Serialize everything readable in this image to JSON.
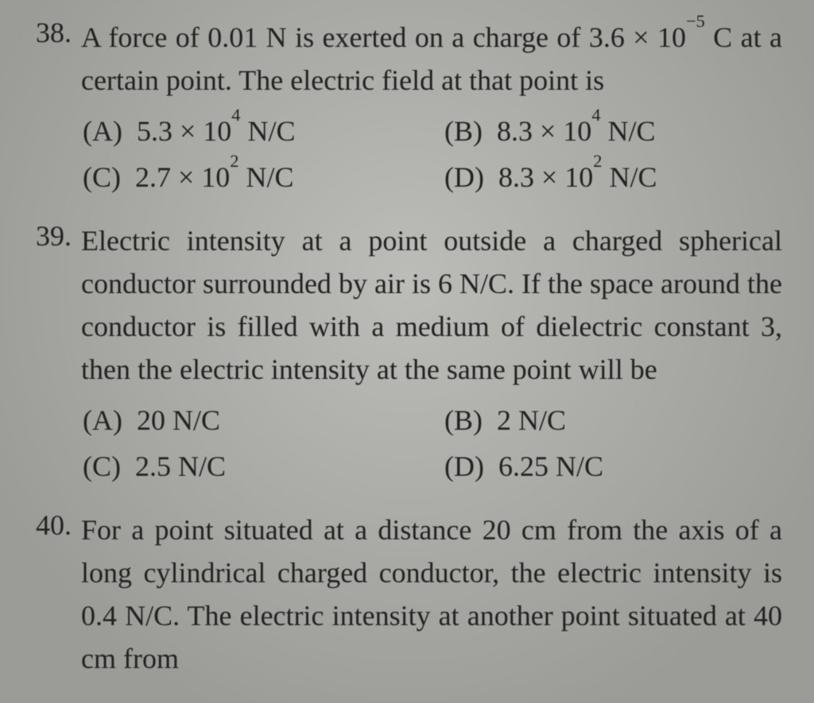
{
  "page": {
    "background_color": "#b0b0ac",
    "text_color": "#222222",
    "font_family": "Georgia, Times New Roman, serif",
    "base_fontsize_pt": 27
  },
  "questions": [
    {
      "number": "38.",
      "stem_html": "A force of 0.01 N is exerted on a charge of 3.6 × 10<sup>−5</sup> C at a certain point. The electric field at that point is",
      "options": [
        {
          "label": "(A)",
          "html": "5.3 × 10<sup>4</sup> N/C"
        },
        {
          "label": "(B)",
          "html": "8.3 × 10<sup>4</sup> N/C"
        },
        {
          "label": "(C)",
          "html": "2.7 × 10<sup>2</sup> N/C"
        },
        {
          "label": "(D)",
          "html": "8.3 × 10<sup>2</sup> N/C"
        }
      ]
    },
    {
      "number": "39.",
      "stem_html": "Electric intensity at a point outside a charged spherical conductor surrounded by air is 6 N/C. If the space around the conductor is filled with a medium of dielectric constant 3, then the electric intensity at the same point will be",
      "options": [
        {
          "label": "(A)",
          "html": "20 N/C"
        },
        {
          "label": "(B)",
          "html": "2 N/C"
        },
        {
          "label": "(C)",
          "html": "2.5 N/C"
        },
        {
          "label": "(D)",
          "html": "6.25 N/C"
        }
      ]
    },
    {
      "number": "40.",
      "stem_html": "For a point situated at a distance 20 cm from the axis of a long cylindrical charged conductor, the electric intensity is 0.4 N/C. The electric intensity at another point situated at 40 cm from",
      "options": []
    }
  ]
}
